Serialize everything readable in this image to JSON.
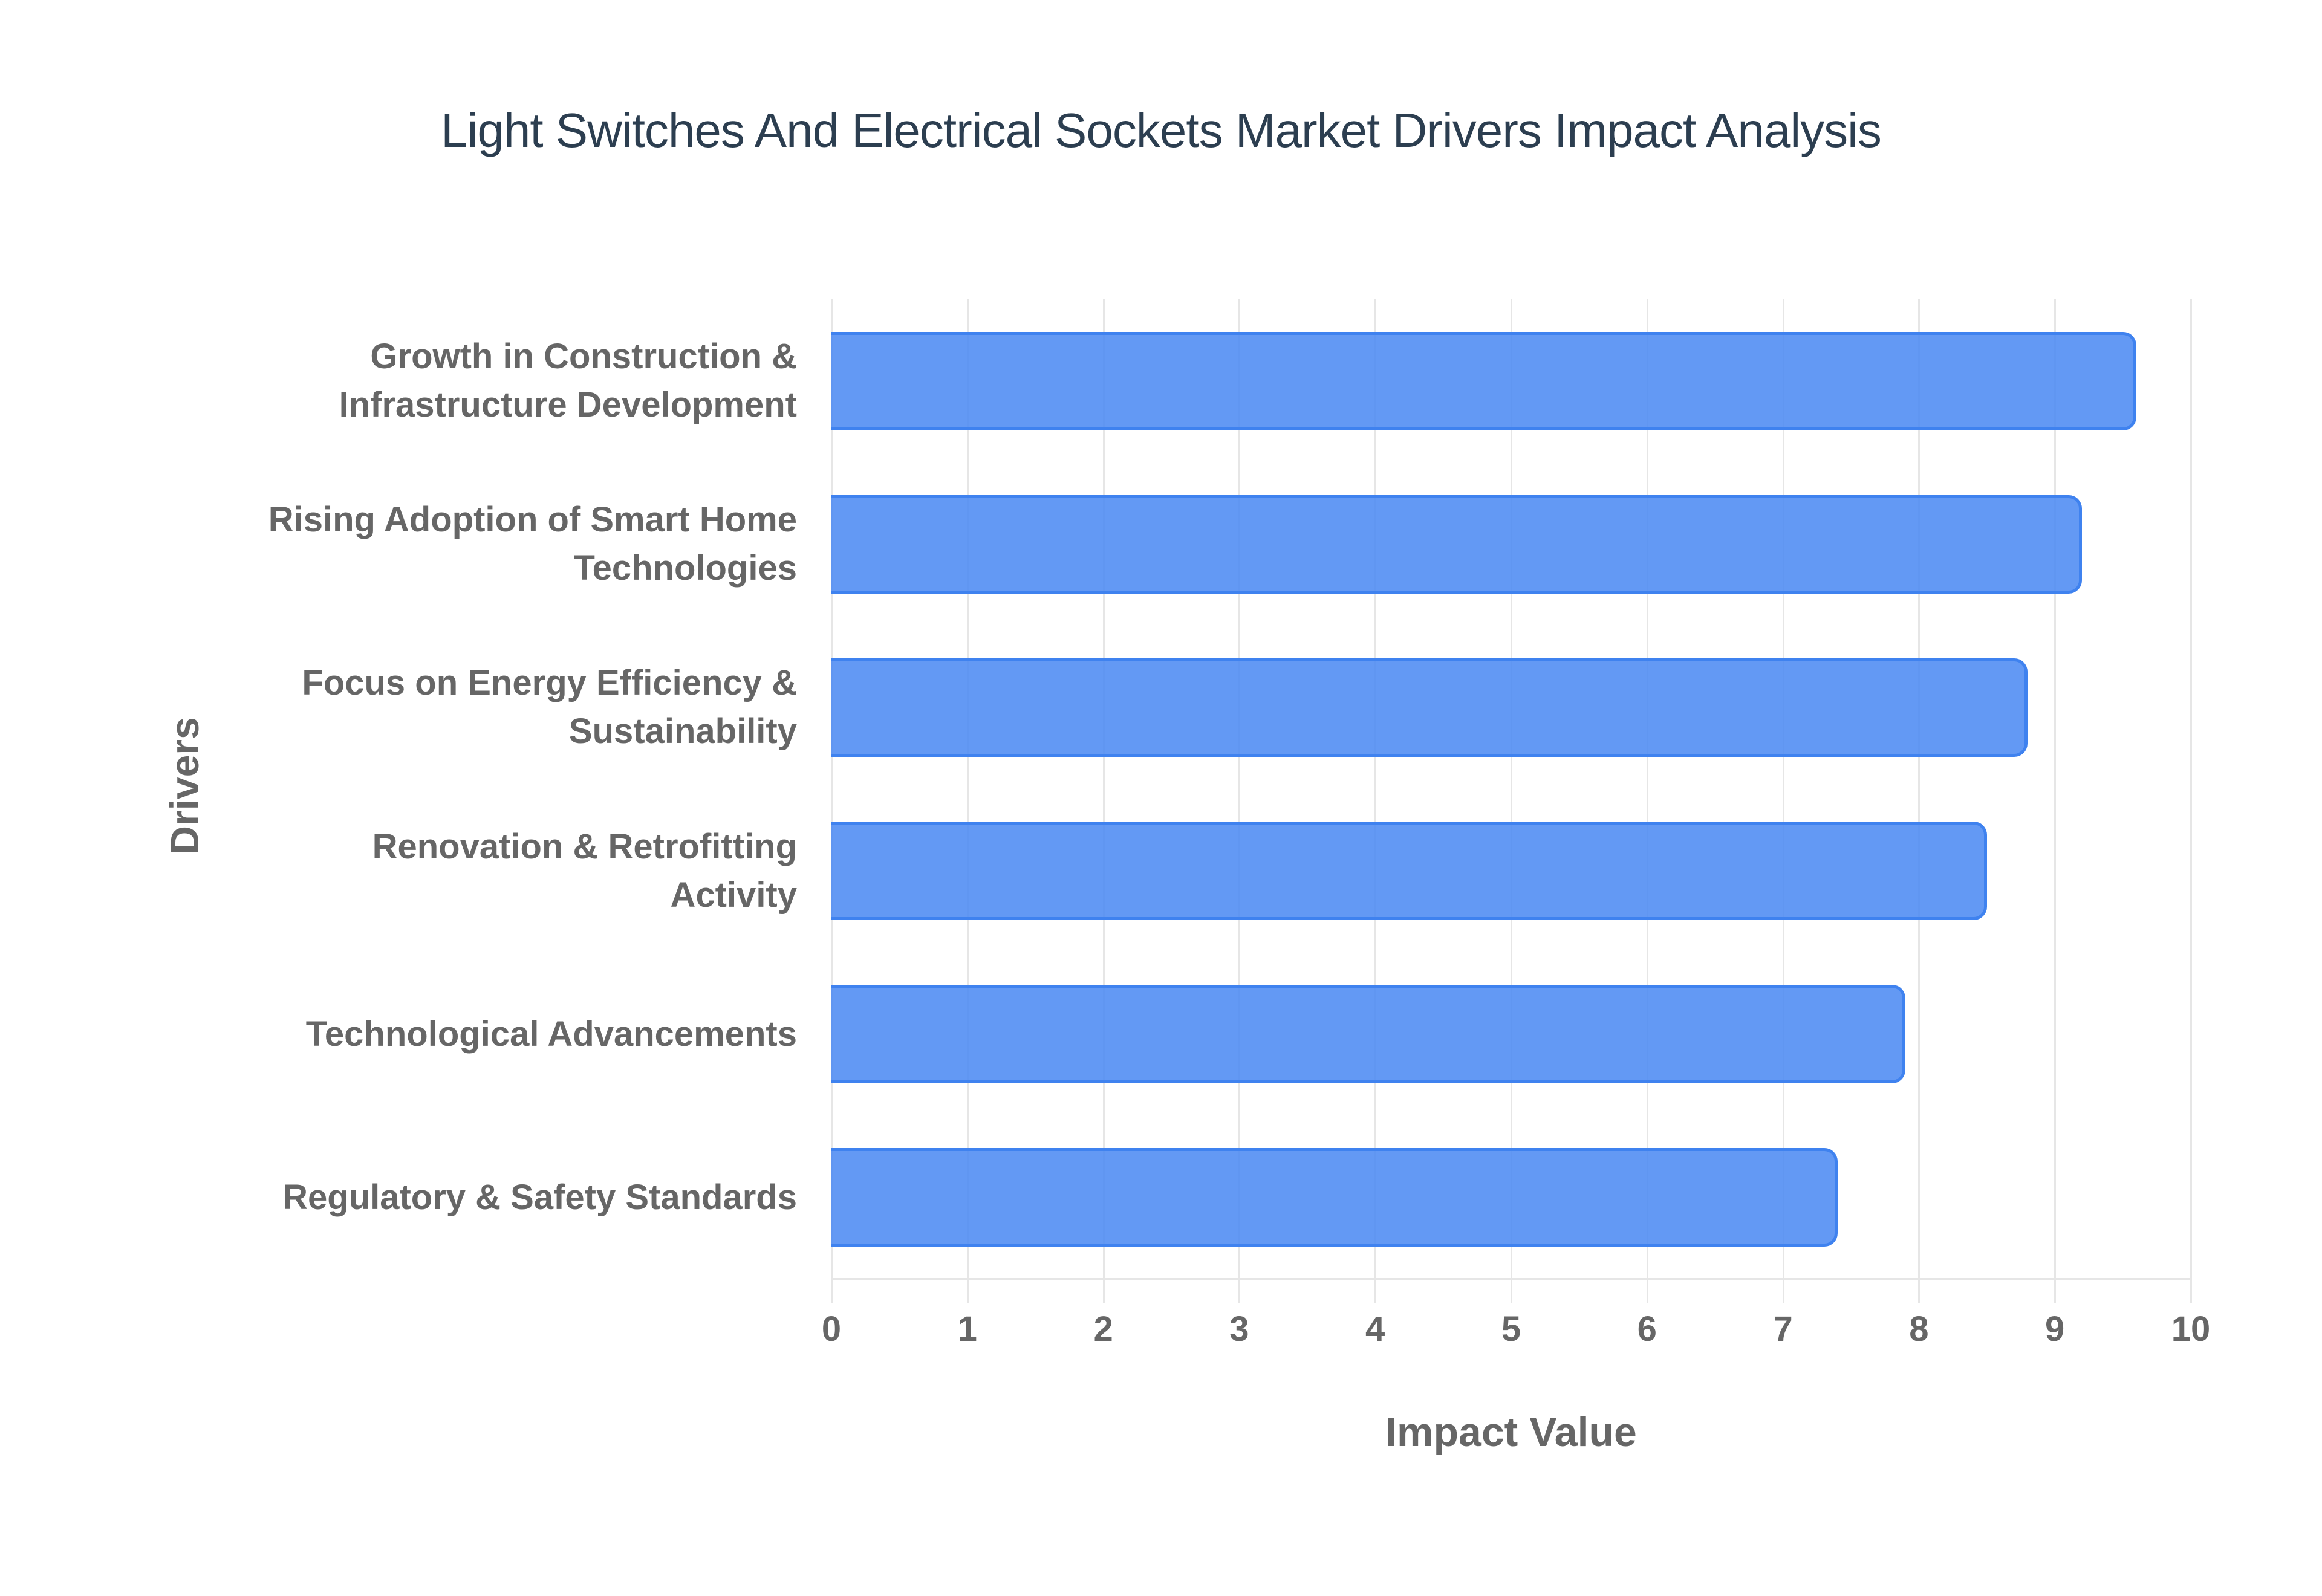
{
  "chart_data": {
    "type": "bar",
    "orientation": "horizontal",
    "title": "Light Switches And Electrical Sockets Market Drivers Impact Analysis",
    "xlabel": "Impact Value",
    "ylabel": "Drivers",
    "xlim": [
      0,
      10
    ],
    "xticks": [
      "0",
      "1",
      "2",
      "3",
      "4",
      "5",
      "6",
      "7",
      "8",
      "9",
      "10"
    ],
    "grid": true,
    "legend": null,
    "categories": [
      "Growth in Construction & Infrastructure Development",
      "Rising Adoption of Smart Home Technologies",
      "Focus on Energy Efficiency & Sustainability",
      "Renovation & Retrofitting Activity",
      "Technological Advancements",
      "Regulatory & Safety Standards"
    ],
    "category_lines": [
      [
        "Growth in Construction &",
        "Infrastructure Development"
      ],
      [
        "Rising Adoption of Smart Home",
        "Technologies"
      ],
      [
        "Focus on Energy Efficiency &",
        "Sustainability"
      ],
      [
        "Renovation & Retrofitting",
        "Activity"
      ],
      [
        "Technological Advancements"
      ],
      [
        "Regulatory & Safety Standards"
      ]
    ],
    "values": [
      9.6,
      9.2,
      8.8,
      8.5,
      7.9,
      7.4
    ],
    "colors": {
      "bar_fill": "#5b96f3",
      "bar_border": "#3f82ef",
      "title": "#2c3e50",
      "axis_text": "#666666",
      "grid": "#e6e6e6"
    }
  }
}
